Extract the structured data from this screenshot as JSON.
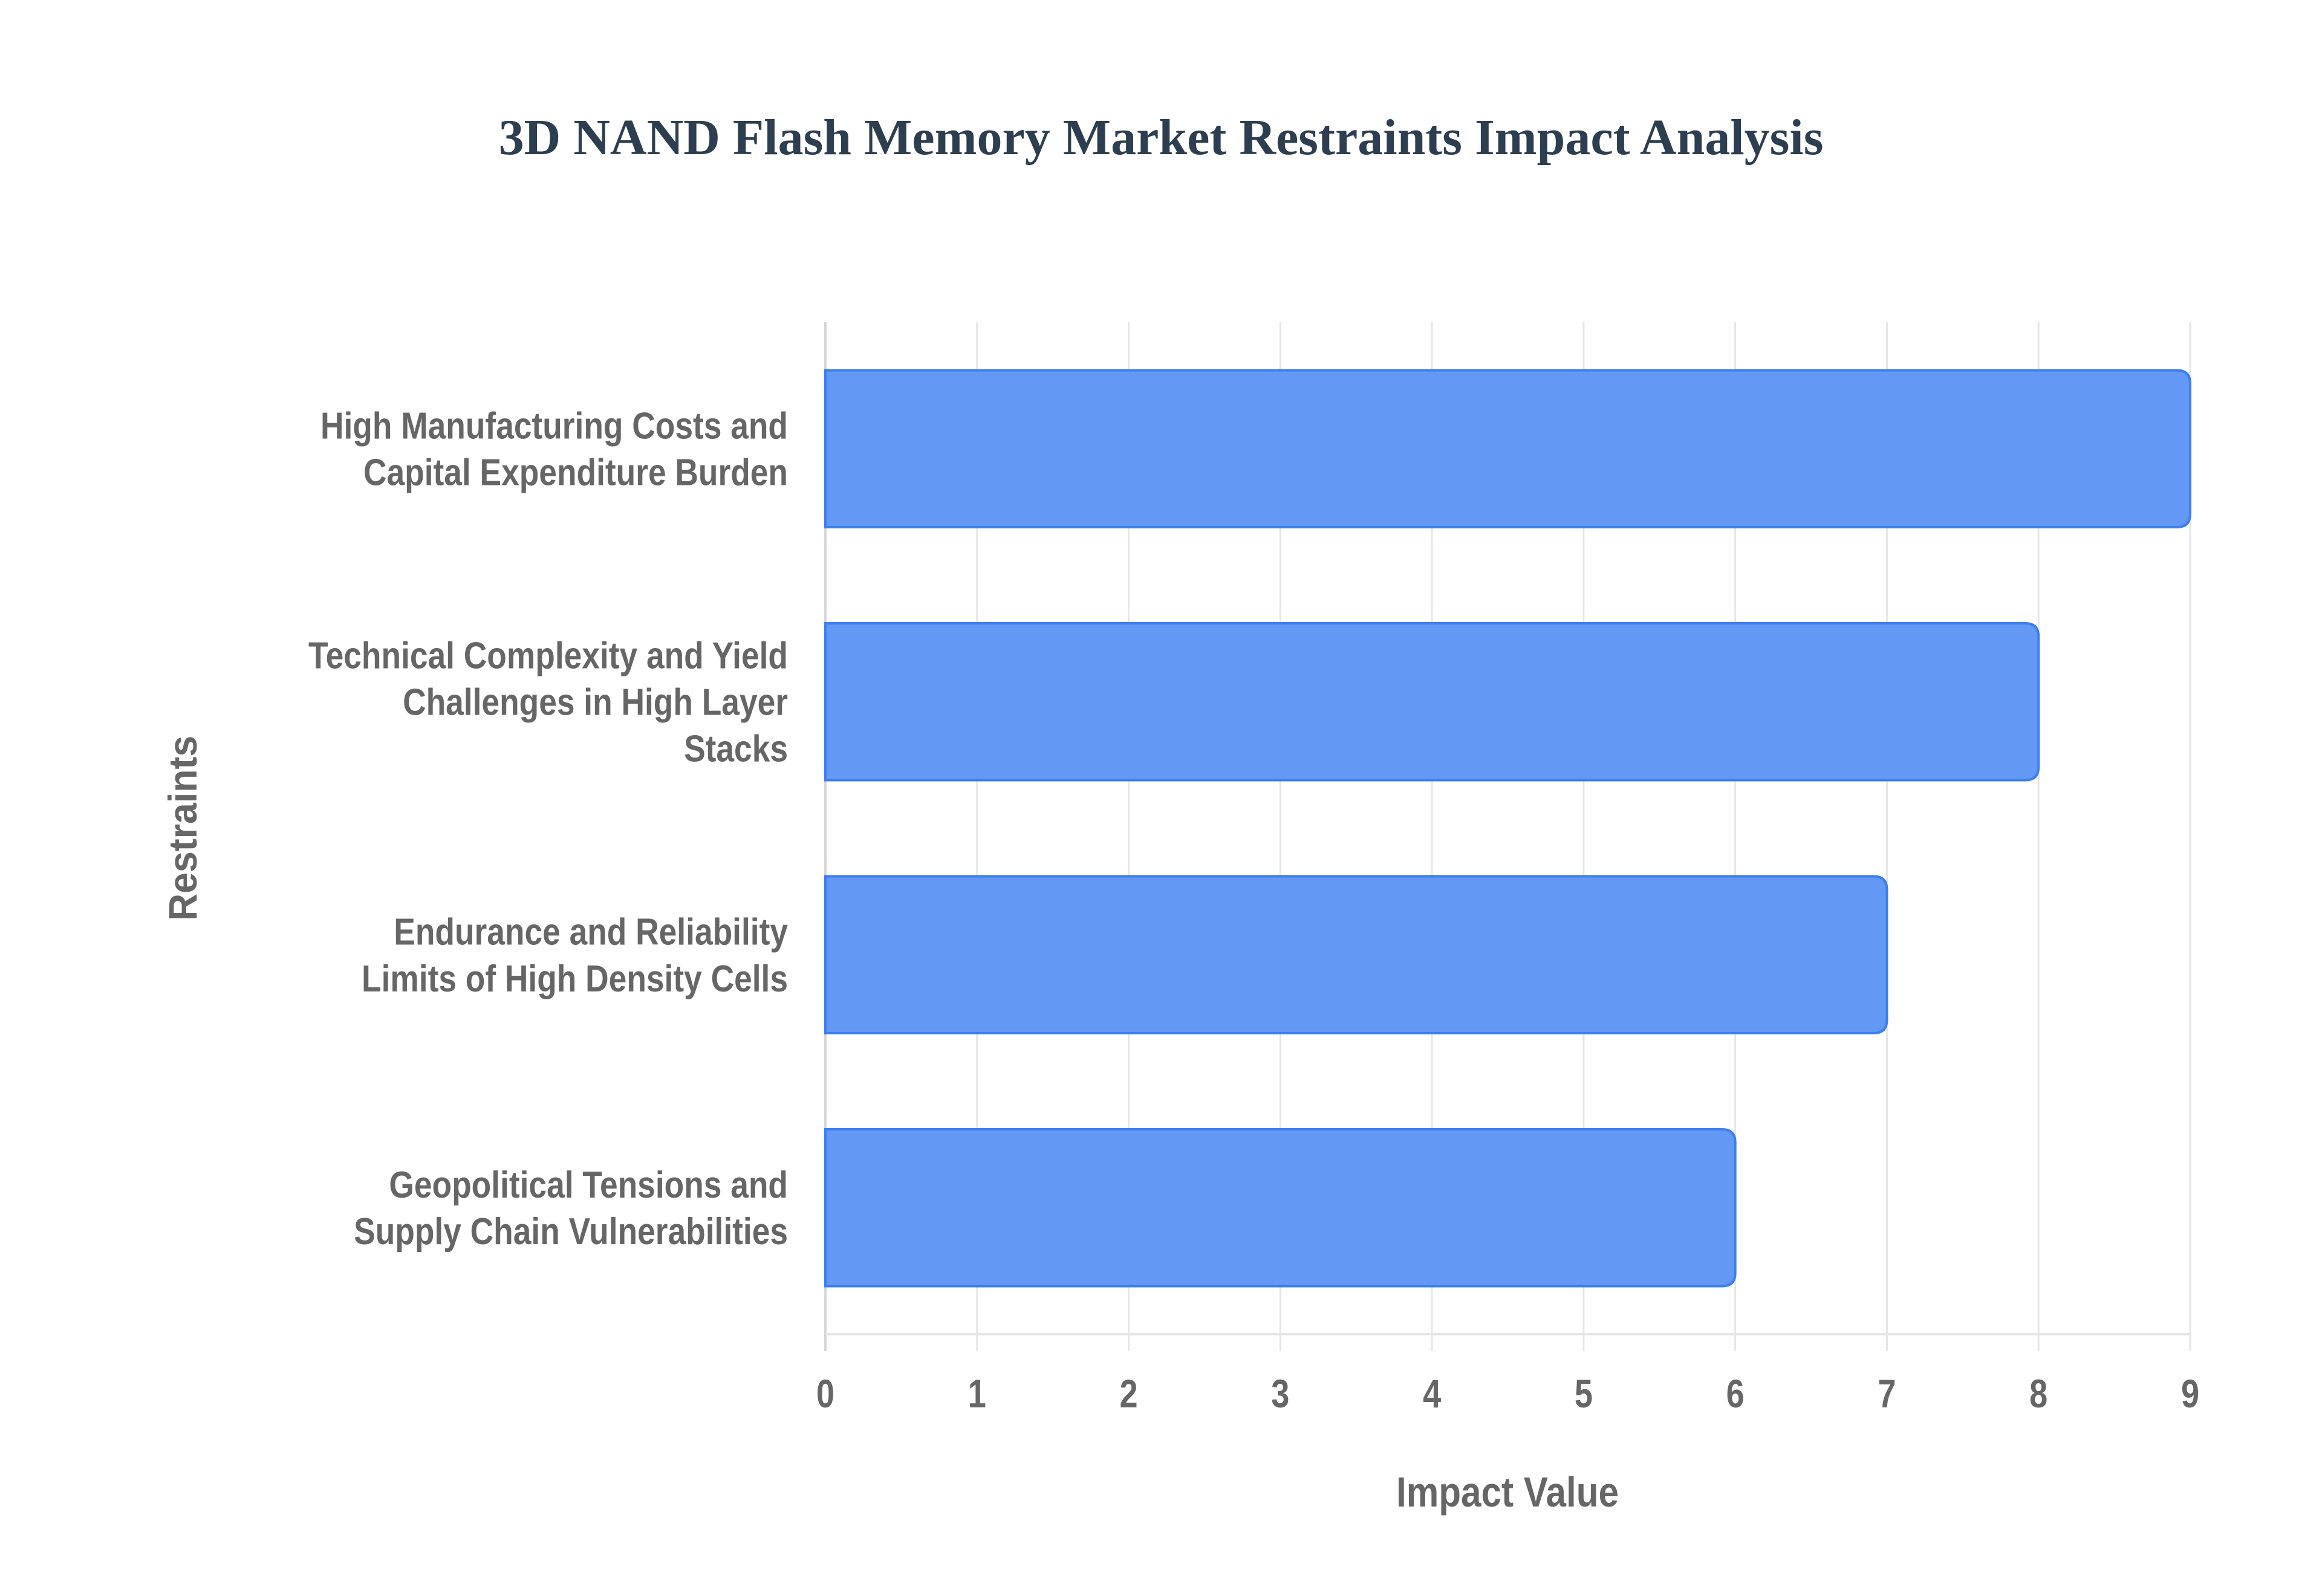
{
  "chart_data": {
    "type": "bar",
    "orientation": "horizontal",
    "title": "3D NAND Flash Memory Market Restraints Impact Analysis",
    "xlabel": "Impact Value",
    "ylabel": "Restraints",
    "categories": [
      "High Manufacturing Costs and Capital Expenditure Burden",
      "Technical Complexity and Yield Challenges in High Layer Stacks",
      "Endurance and Reliability Limits of High Density Cells",
      "Geopolitical Tensions and Supply Chain Vulnerabilities"
    ],
    "category_label_lines": [
      [
        "High Manufacturing Costs and",
        "Capital Expenditure Burden"
      ],
      [
        "Technical Complexity and Yield",
        "Challenges in High Layer",
        "Stacks"
      ],
      [
        "Endurance and Reliability",
        "Limits of High Density Cells"
      ],
      [
        "Geopolitical Tensions and",
        "Supply Chain Vulnerabilities"
      ]
    ],
    "values": [
      9,
      8,
      7,
      6
    ],
    "xlim": [
      0,
      9
    ],
    "x_ticks": [
      "0",
      "1",
      "2",
      "3",
      "4",
      "5",
      "6",
      "7",
      "8",
      "9"
    ],
    "grid": true,
    "legend": null,
    "colors": {
      "bar_fill": "#6399f5",
      "bar_stroke": "#3b7ff0",
      "grid": "#e6e6e6",
      "axis": "#d6d6d6",
      "title": "#2c3e50",
      "text": "#666666"
    }
  }
}
